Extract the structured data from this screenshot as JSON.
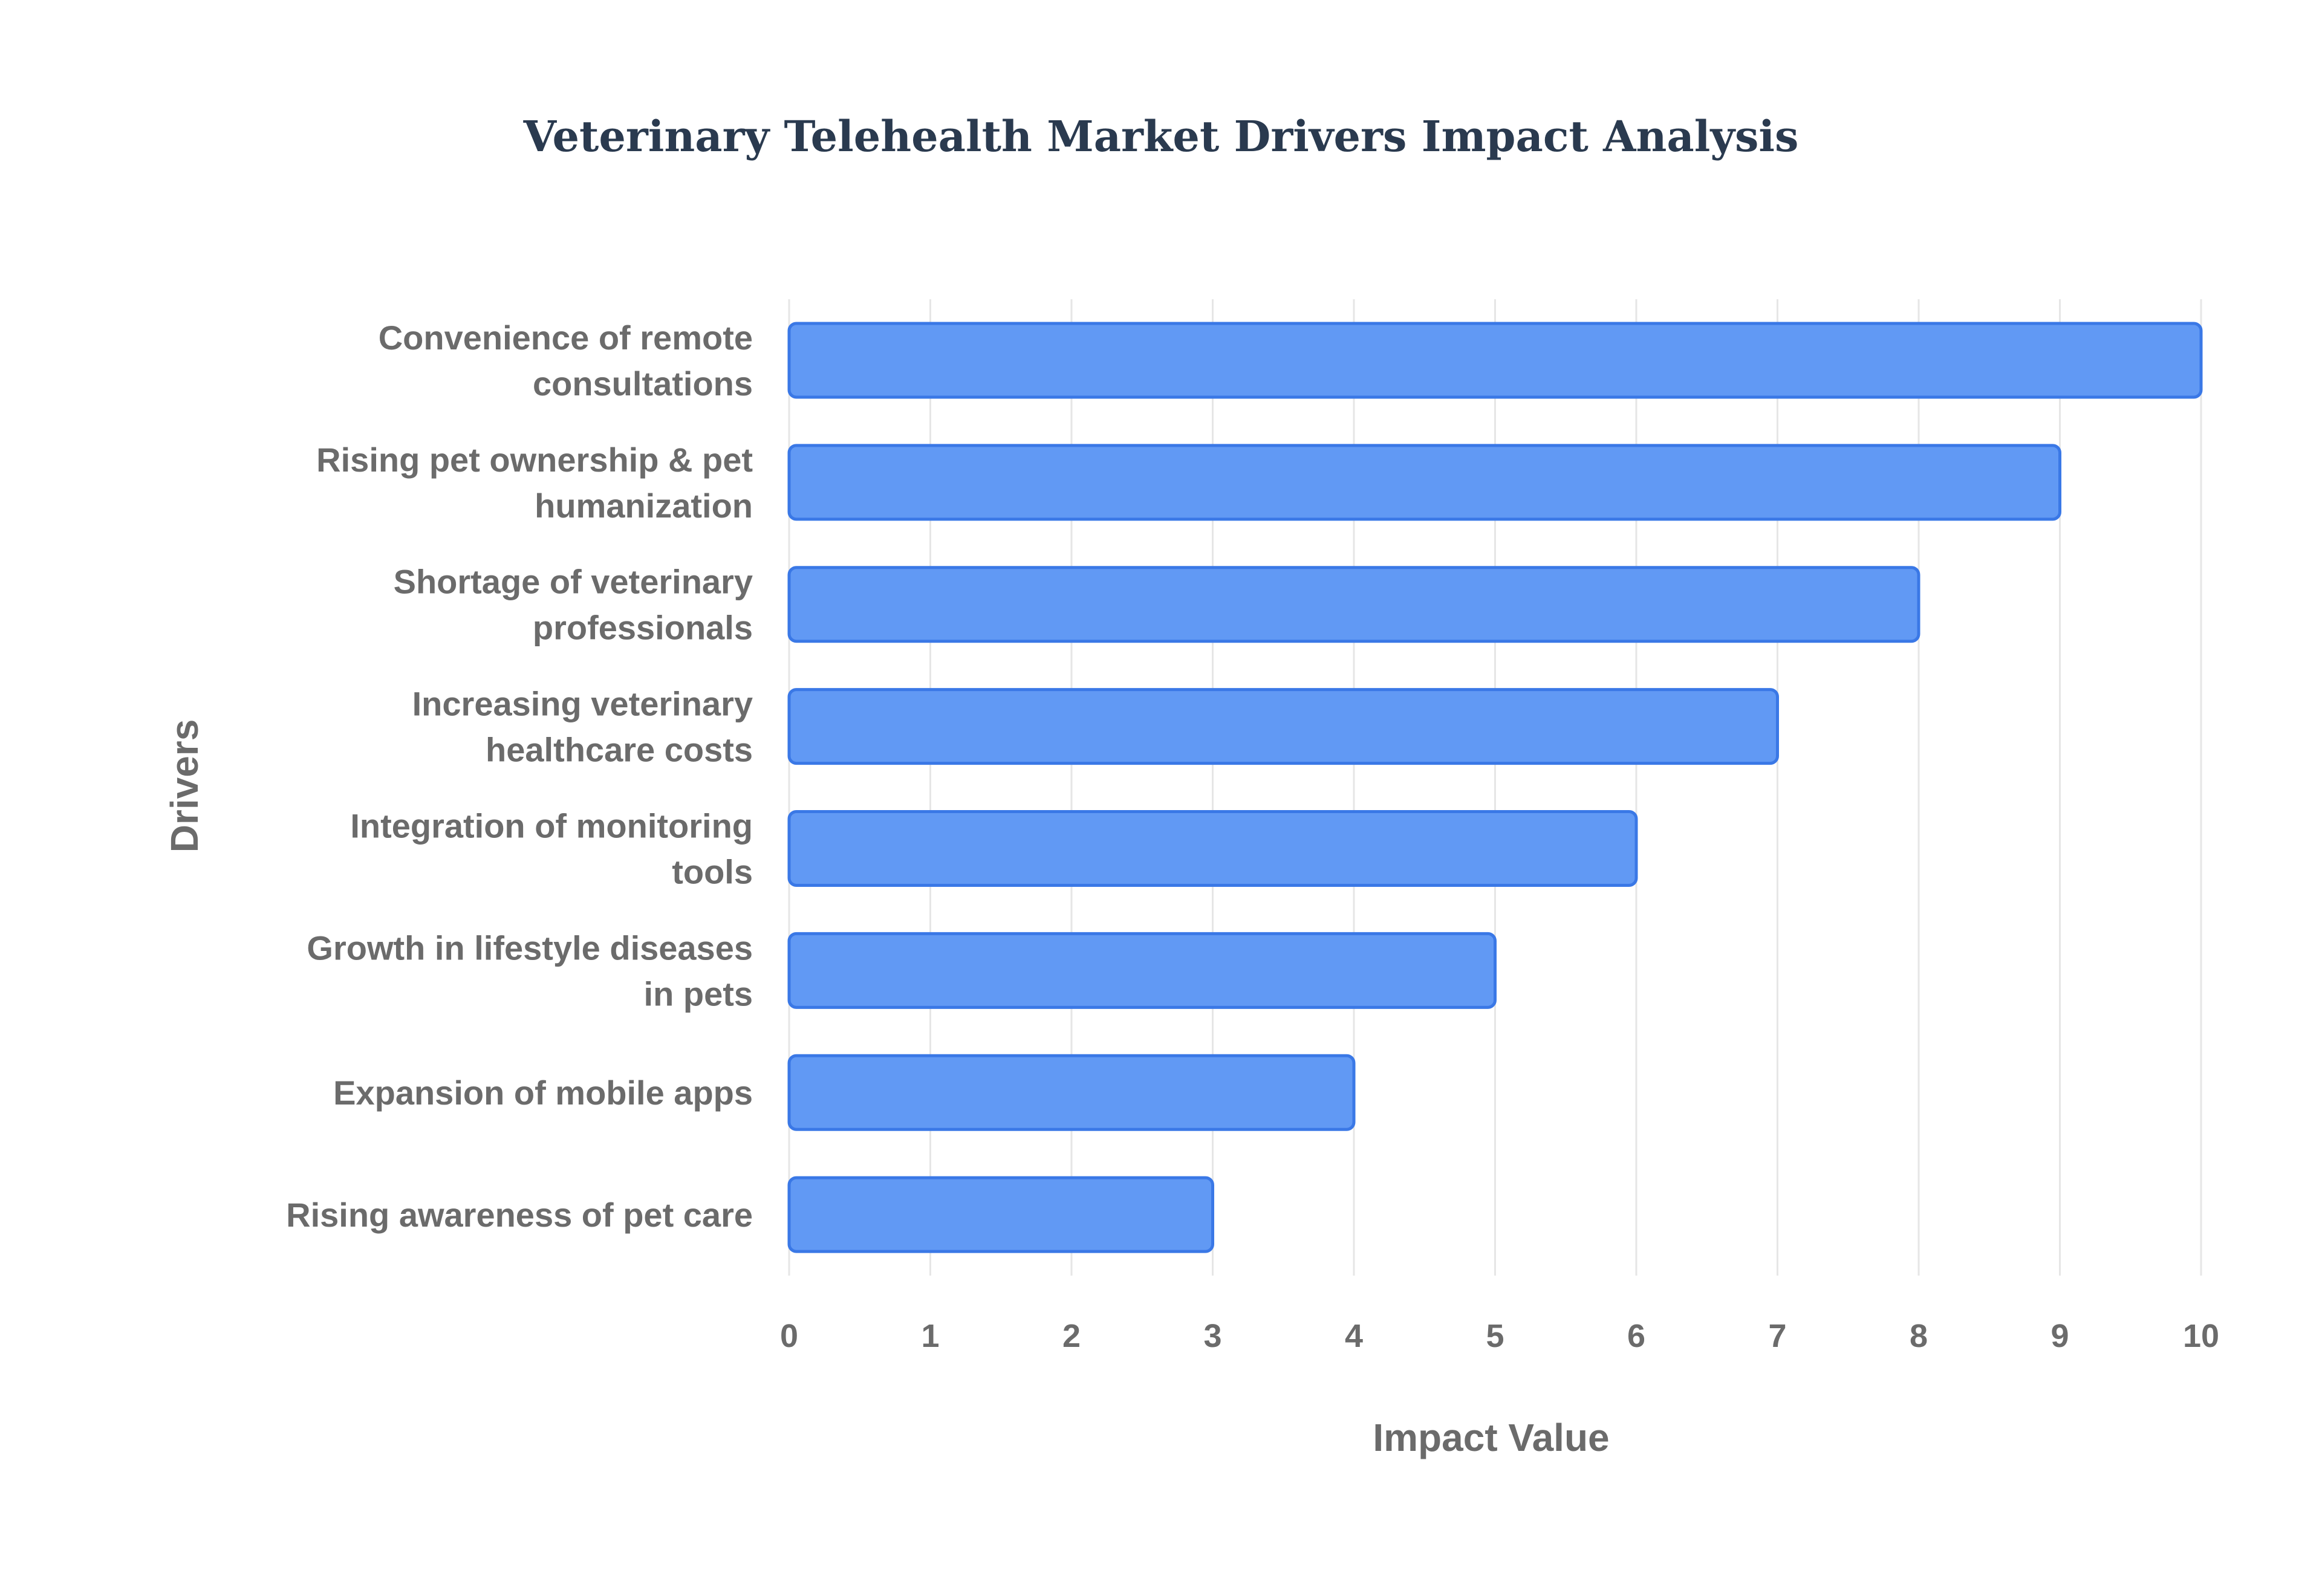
{
  "chart_data": {
    "type": "bar",
    "orientation": "horizontal",
    "title": "Veterinary Telehealth Market Drivers Impact Analysis",
    "xlabel": "Impact Value",
    "ylabel": "Drivers",
    "xlim": [
      0,
      10
    ],
    "x_ticks": [
      0,
      1,
      2,
      3,
      4,
      5,
      6,
      7,
      8,
      9,
      10
    ],
    "grid": true,
    "legend": "none",
    "bar_color": "#6199f4",
    "bar_border_color": "#3a78e6",
    "categories": [
      [
        "Convenience of remote",
        "consultations"
      ],
      [
        "Rising pet ownership & pet",
        "humanization"
      ],
      [
        "Shortage of veterinary",
        "professionals"
      ],
      [
        "Increasing veterinary",
        "healthcare costs"
      ],
      [
        "Integration of monitoring",
        "tools"
      ],
      [
        "Growth in lifestyle diseases",
        "in pets"
      ],
      [
        "Expansion of mobile apps"
      ],
      [
        "Rising awareness of pet care"
      ]
    ],
    "values": [
      10,
      9,
      8,
      7,
      6,
      5,
      4,
      3
    ]
  }
}
